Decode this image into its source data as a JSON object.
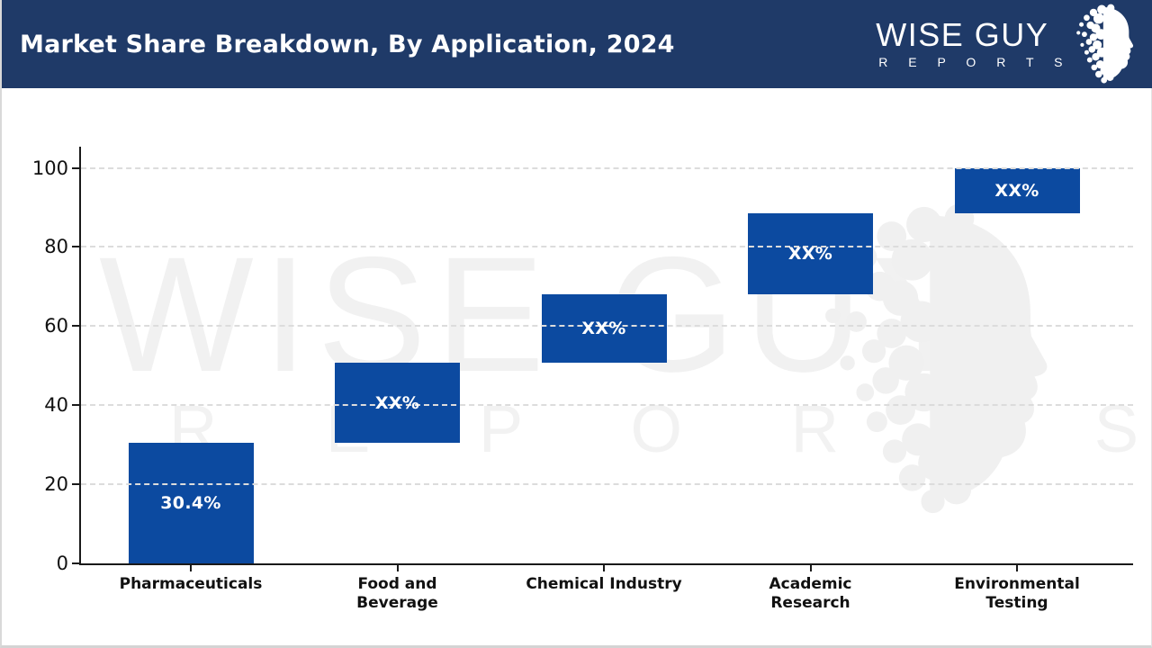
{
  "header": {
    "title": "Market Share Breakdown, By Application, 2024",
    "background_color": "#1f3a68",
    "logo": {
      "line1": "WISE GUY",
      "line2": "R E P O R T S",
      "icon": "head-profile-dots-icon"
    }
  },
  "watermark": {
    "line1": "WISE GUY",
    "line2": "R E P O R T S",
    "icon": "head-profile-dots-icon"
  },
  "chart_data": {
    "type": "bar",
    "subtype": "waterfall",
    "title": "Market Share Breakdown, By Application, 2024",
    "xlabel": "",
    "ylabel": "",
    "categories": [
      "Pharmaceuticals",
      "Food and Beverage",
      "Chemical Industry",
      "Academic Research",
      "Environmental Testing"
    ],
    "values": [
      30.4,
      20.3,
      17.3,
      20.5,
      11.5
    ],
    "segment_start": [
      0,
      30.4,
      50.7,
      68.0,
      88.5
    ],
    "segment_end": [
      30.4,
      50.7,
      68.0,
      88.5,
      100.0
    ],
    "bar_labels": [
      "30.4%",
      "XX%",
      "XX%",
      "XX%",
      "XX%"
    ],
    "yticks": [
      0,
      20,
      40,
      60,
      80,
      100
    ],
    "ylim": [
      0,
      105
    ],
    "grid": "horizontal-dashed",
    "legend": "none",
    "bar_color": "#0c4aa0",
    "bar_label_color": "#ffffff",
    "gridline_color": "#dcdcdc",
    "axis_color": "#1a1a1a"
  }
}
